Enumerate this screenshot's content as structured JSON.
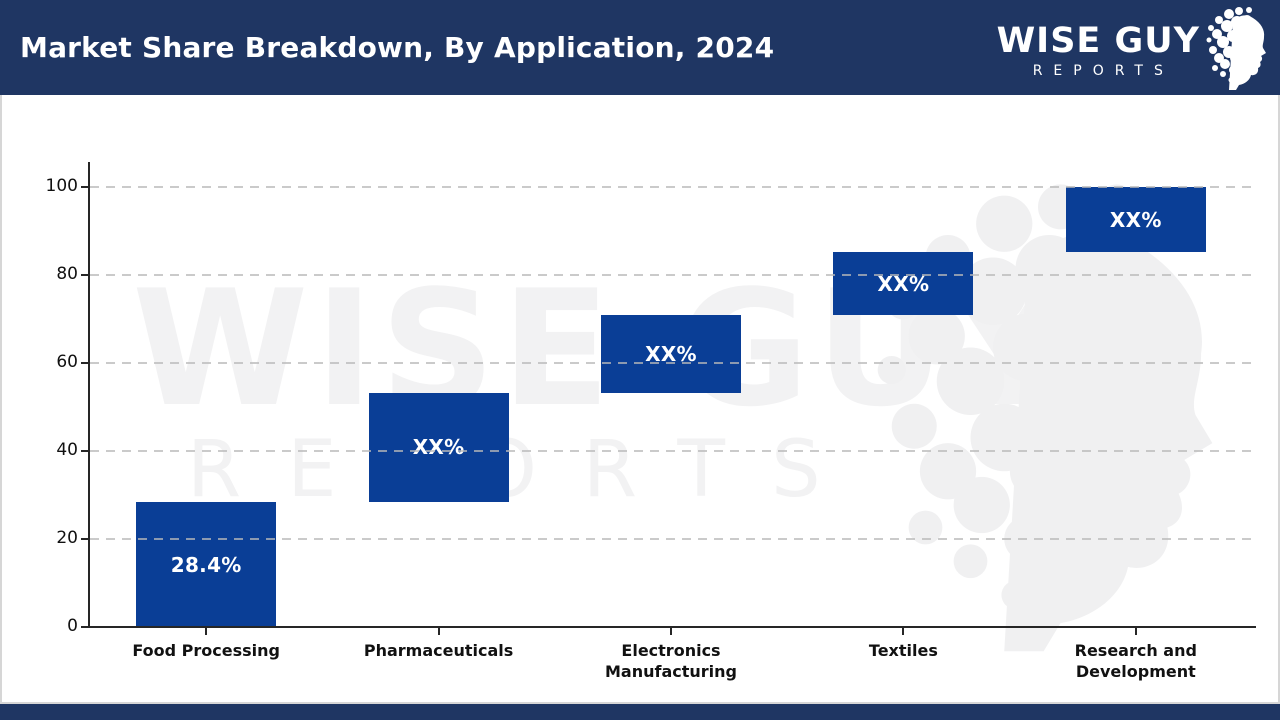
{
  "colors": {
    "navy": "#1f3663",
    "content_border": "#d6d6d6",
    "watermark": "#f2f2f3"
  },
  "header": {
    "title": "Market Share Breakdown, By Application, 2024",
    "logo": {
      "line1": "WISE GUY",
      "line2": "REPORTS"
    }
  },
  "watermark": {
    "line1": "WISE GUY",
    "line2": "REPORTS"
  },
  "chart_data": {
    "type": "bar",
    "subtype": "waterfall",
    "title": "Market Share Breakdown, By Application, 2024",
    "xlabel": "",
    "ylabel": "",
    "ylim": [
      0,
      100
    ],
    "yticks": [
      0,
      20,
      40,
      60,
      80,
      100
    ],
    "grid": "dashed-horizontal",
    "bar_color": "#0a3e96",
    "label_color": "#ffffff",
    "categories": [
      "Food Processing",
      "Pharmaceuticals",
      "Electronics Manufacturing",
      "Textiles",
      "Research and Development"
    ],
    "category_lines": [
      [
        "Food Processing"
      ],
      [
        "Pharmaceuticals"
      ],
      [
        "Electronics",
        "Manufacturing"
      ],
      [
        "Textiles"
      ],
      [
        "Research and",
        "Development"
      ]
    ],
    "bars": [
      {
        "category": "Food Processing",
        "start": 0,
        "end": 28.4,
        "label": "28.4%"
      },
      {
        "category": "Pharmaceuticals",
        "start": 28.4,
        "end": 53.2,
        "label": "XX%"
      },
      {
        "category": "Electronics Manufacturing",
        "start": 53.2,
        "end": 70.9,
        "label": "XX%"
      },
      {
        "category": "Textiles",
        "start": 70.9,
        "end": 85.2,
        "label": "XX%"
      },
      {
        "category": "Research and Development",
        "start": 85.2,
        "end": 100,
        "label": "XX%"
      }
    ]
  }
}
